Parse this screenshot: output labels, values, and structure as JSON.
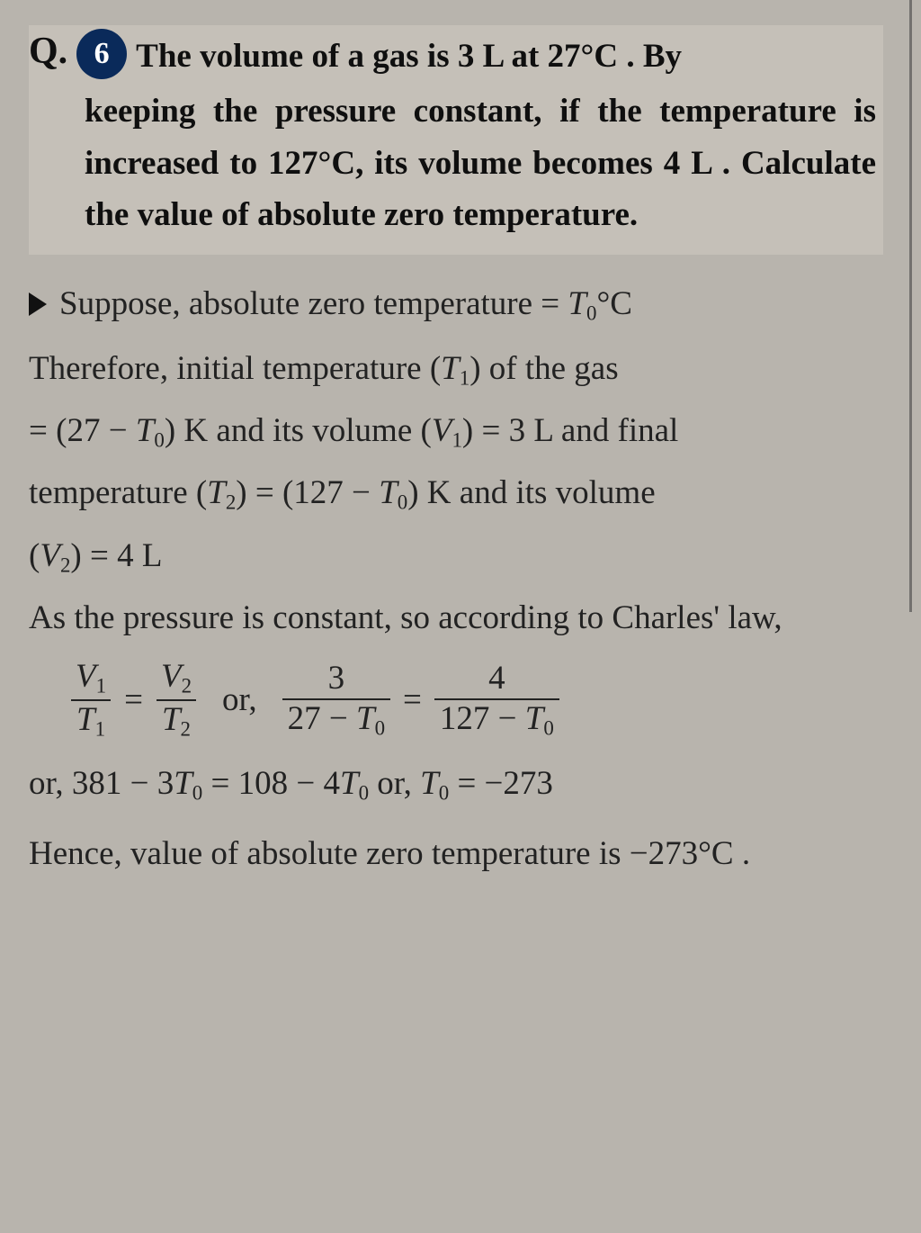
{
  "question": {
    "label": "Q.",
    "number": "6",
    "line1": "The volume of a gas is 3 L at 27°C . By",
    "body": "keeping the pressure constant, if the temperature is increased to 127°C, its volume becomes 4 L . Calculate the value of absolute zero temperature."
  },
  "solution": {
    "suppose_pre": "Suppose, absolute zero temperature = ",
    "T0": "T",
    "zero": "0",
    "degC": "°C",
    "therefore": "Therefore, initial temperature (",
    "T1": "T",
    "one": "1",
    "therefore_post": ") of the gas",
    "line_eq1_a": "= (27 − ",
    "line_eq1_b": ") K and its volume (",
    "V": "V",
    "line_eq1_c": ") = 3 L and final",
    "line_temp2_a": "temperature (",
    "two": "2",
    "line_temp2_b": ") = (127 − ",
    "line_temp2_c": ") K and its volume",
    "line_v2_a": "(",
    "line_v2_b": ") = 4 L",
    "charles_a": "As the pressure is constant, so according to Charles' law,",
    "eq_or": "or,",
    "frac1_num": "V",
    "frac1_den": "T",
    "eq_eq": "=",
    "frac3_num": "3",
    "frac3_den_a": "27 − ",
    "frac4_num": "4",
    "frac4_den_a": "127 − ",
    "or_line": "or,   381 − 3",
    "or_line_b": " = 108 − 4",
    "or_line_c": "    or,  ",
    "or_line_d": " = −273",
    "final": "Hence, value of absolute zero temperature is −273°C ."
  },
  "colors": {
    "page_bg": "#b8b4ad",
    "badge_bg": "#0a2a5a",
    "badge_fg": "#ffffff",
    "text": "#1a1a1a"
  }
}
